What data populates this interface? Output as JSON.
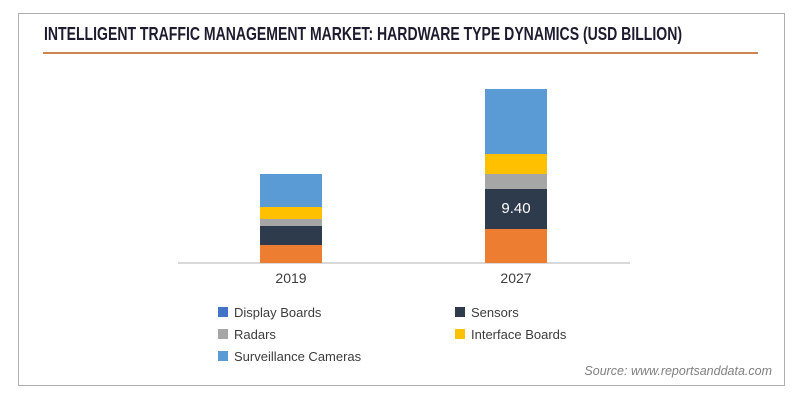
{
  "chart_data": {
    "type": "bar",
    "variant": "stacked-column",
    "title": "INTELLIGENT TRAFFIC MANAGEMENT MARKET: HARDWARE TYPE DYNAMICS (USD BILLION)",
    "categories": [
      "2019",
      "2027"
    ],
    "series": [
      {
        "name": "Display Boards",
        "values": [
          4.2,
          8.0
        ],
        "bar_color": "#ED7D31",
        "legend_color": "#4472C4"
      },
      {
        "name": "Sensors",
        "values": [
          4.5,
          9.4
        ],
        "bar_color": "#2E3B4D",
        "legend_color": "#2E3B4D"
      },
      {
        "name": "Radars",
        "values": [
          1.6,
          3.5
        ],
        "bar_color": "#A6A6A6",
        "legend_color": "#A6A6A6"
      },
      {
        "name": "Interface Boards",
        "values": [
          2.8,
          4.7
        ],
        "bar_color": "#FFC000",
        "legend_color": "#FFC000"
      },
      {
        "name": "Surveillance Cameras",
        "values": [
          7.8,
          15.3
        ],
        "bar_color": "#5B9BD5",
        "legend_color": "#5B9BD5"
      }
    ],
    "stack_order_bottom_to_top": [
      "Display Boards",
      "Sensors",
      "Radars",
      "Interface Boards",
      "Surveillance Cameras"
    ],
    "data_labels": [
      {
        "category": "2027",
        "series": "Sensors",
        "text": "9.40"
      }
    ],
    "legend_position": "bottom",
    "grid": false,
    "y_axis_visible": false,
    "xlabel": "",
    "ylabel": ""
  },
  "source": "Source: www.reportsanddata.com",
  "colors": {
    "title_text": "#1C1C2E",
    "title_underline": "#CD8452",
    "axis_line": "#D9D9D9",
    "frame_border": "#AEAEAE",
    "data_label_text": "#FFFFFF",
    "tick_label_text": "#3D3D3D",
    "source_text": "#808080"
  }
}
